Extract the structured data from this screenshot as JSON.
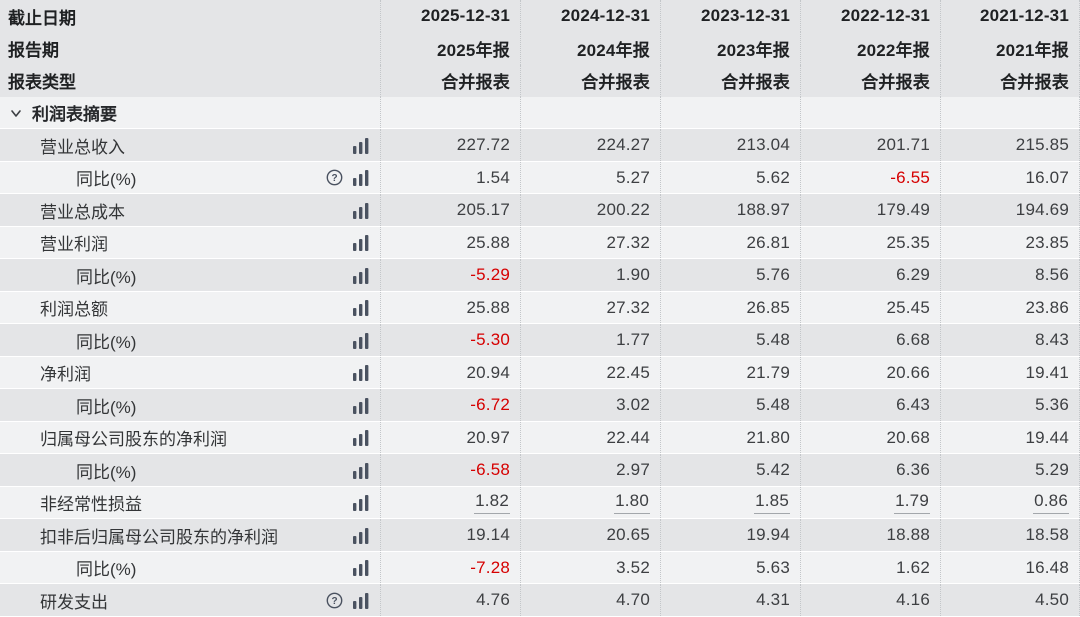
{
  "colors": {
    "row_dark": "#e4e5e7",
    "row_light": "#f1f2f3",
    "negative": "#d60000",
    "text": "#333537",
    "icon": "#4a5260"
  },
  "header": {
    "row_labels": [
      "截止日期",
      "报告期",
      "报表类型"
    ],
    "columns": [
      {
        "date": "2025-12-31",
        "period": "2025年报",
        "type": "合并报表"
      },
      {
        "date": "2024-12-31",
        "period": "2024年报",
        "type": "合并报表"
      },
      {
        "date": "2023-12-31",
        "period": "2023年报",
        "type": "合并报表"
      },
      {
        "date": "2022-12-31",
        "period": "2022年报",
        "type": "合并报表"
      },
      {
        "date": "2021-12-31",
        "period": "2021年报",
        "type": "合并报表"
      }
    ]
  },
  "section": {
    "title": "利润表摘要"
  },
  "rows": [
    {
      "label": "营业总收入",
      "level": 1,
      "help": false,
      "chart": true,
      "underline": false,
      "values": [
        "227.72",
        "224.27",
        "213.04",
        "201.71",
        "215.85"
      ]
    },
    {
      "label": "同比(%)",
      "level": 2,
      "help": true,
      "chart": true,
      "underline": false,
      "values": [
        "1.54",
        "5.27",
        "5.62",
        "-6.55",
        "16.07"
      ]
    },
    {
      "label": "营业总成本",
      "level": 1,
      "help": false,
      "chart": true,
      "underline": false,
      "values": [
        "205.17",
        "200.22",
        "188.97",
        "179.49",
        "194.69"
      ]
    },
    {
      "label": "营业利润",
      "level": 1,
      "help": false,
      "chart": true,
      "underline": false,
      "values": [
        "25.88",
        "27.32",
        "26.81",
        "25.35",
        "23.85"
      ]
    },
    {
      "label": "同比(%)",
      "level": 2,
      "help": false,
      "chart": true,
      "underline": false,
      "values": [
        "-5.29",
        "1.90",
        "5.76",
        "6.29",
        "8.56"
      ]
    },
    {
      "label": "利润总额",
      "level": 1,
      "help": false,
      "chart": true,
      "underline": false,
      "values": [
        "25.88",
        "27.32",
        "26.85",
        "25.45",
        "23.86"
      ]
    },
    {
      "label": "同比(%)",
      "level": 2,
      "help": false,
      "chart": true,
      "underline": false,
      "values": [
        "-5.30",
        "1.77",
        "5.48",
        "6.68",
        "8.43"
      ]
    },
    {
      "label": "净利润",
      "level": 1,
      "help": false,
      "chart": true,
      "underline": false,
      "values": [
        "20.94",
        "22.45",
        "21.79",
        "20.66",
        "19.41"
      ]
    },
    {
      "label": "同比(%)",
      "level": 2,
      "help": false,
      "chart": true,
      "underline": false,
      "values": [
        "-6.72",
        "3.02",
        "5.48",
        "6.43",
        "5.36"
      ]
    },
    {
      "label": "归属母公司股东的净利润",
      "level": 1,
      "help": false,
      "chart": true,
      "underline": false,
      "values": [
        "20.97",
        "22.44",
        "21.80",
        "20.68",
        "19.44"
      ]
    },
    {
      "label": "同比(%)",
      "level": 2,
      "help": false,
      "chart": true,
      "underline": false,
      "values": [
        "-6.58",
        "2.97",
        "5.42",
        "6.36",
        "5.29"
      ]
    },
    {
      "label": "非经常性损益",
      "level": 1,
      "help": false,
      "chart": true,
      "underline": true,
      "values": [
        "1.82",
        "1.80",
        "1.85",
        "1.79",
        "0.86"
      ]
    },
    {
      "label": "扣非后归属母公司股东的净利润",
      "level": 1,
      "help": false,
      "chart": true,
      "underline": false,
      "values": [
        "19.14",
        "20.65",
        "19.94",
        "18.88",
        "18.58"
      ]
    },
    {
      "label": "同比(%)",
      "level": 2,
      "help": false,
      "chart": true,
      "underline": false,
      "values": [
        "-7.28",
        "3.52",
        "5.63",
        "1.62",
        "16.48"
      ]
    },
    {
      "label": "研发支出",
      "level": 1,
      "help": true,
      "chart": true,
      "underline": false,
      "values": [
        "4.76",
        "4.70",
        "4.31",
        "4.16",
        "4.50"
      ]
    }
  ]
}
